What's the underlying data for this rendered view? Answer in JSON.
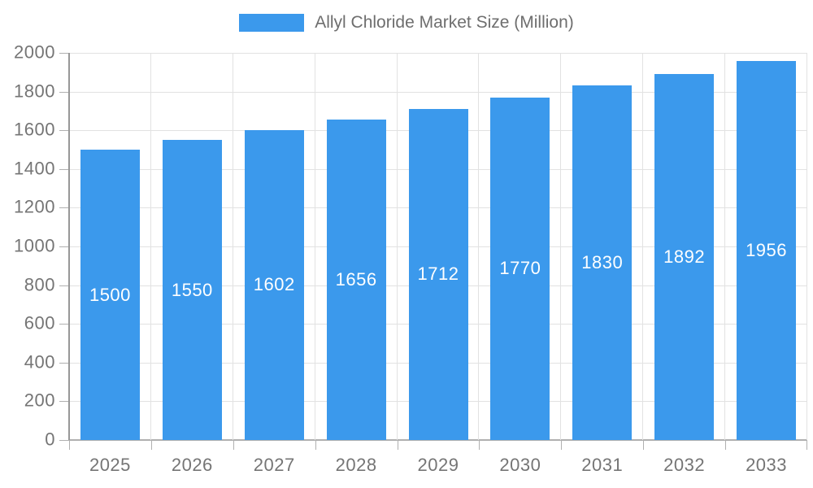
{
  "chart_data": {
    "type": "bar",
    "title": "Allyl Chloride Market Size (Million)",
    "categories": [
      "2025",
      "2026",
      "2027",
      "2028",
      "2029",
      "2030",
      "2031",
      "2032",
      "2033"
    ],
    "values": [
      1500,
      1550,
      1602,
      1656,
      1712,
      1770,
      1830,
      1892,
      1956
    ],
    "xlabel": "",
    "ylabel": "",
    "ylim": [
      0,
      2000
    ],
    "ytick_step": 200,
    "yticks": [
      "0",
      "200",
      "400",
      "600",
      "800",
      "1000",
      "1200",
      "1400",
      "1600",
      "1800",
      "2000"
    ],
    "bar_color": "#3B99EC",
    "bar_label_color": "#FFFFFF",
    "grid": true,
    "legend_position": "top-center"
  }
}
